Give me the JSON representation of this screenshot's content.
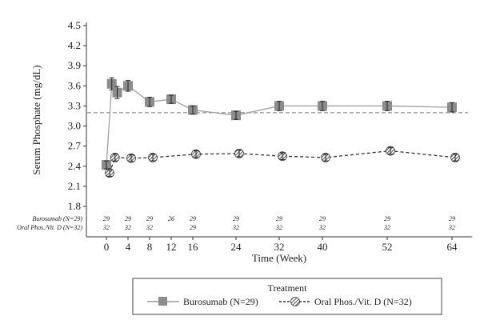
{
  "chart_data": {
    "type": "line",
    "title": "",
    "xlabel": "Time (Week)",
    "ylabel": "Serum Phosphate (mg/dL)",
    "xlim": [
      0,
      64
    ],
    "ylim": [
      1.8,
      4.5
    ],
    "xticks": [
      0,
      4,
      8,
      12,
      16,
      24,
      32,
      40,
      52,
      64
    ],
    "xtick_labels": [
      "0",
      "4",
      "8",
      "12",
      "16",
      "24",
      "32",
      "40",
      "52",
      "64"
    ],
    "yticks": [
      1.8,
      2.1,
      2.4,
      2.7,
      3.0,
      3.3,
      3.6,
      3.9,
      4.2,
      4.5
    ],
    "ytick_labels": [
      "1.8",
      "2.1",
      "2.4",
      "2.7",
      "3.0",
      "3.3",
      "3.6",
      "3.9",
      "4.2",
      "4.5"
    ],
    "reference_line": {
      "y": 3.2,
      "style": "dashed"
    },
    "grid": false,
    "series": [
      {
        "name": "Burosumab (N=29)",
        "marker": "square",
        "line_style": "solid",
        "color": "#8c8c8c",
        "x": [
          0,
          1,
          2,
          4,
          8,
          12,
          16,
          24,
          32,
          40,
          52,
          64
        ],
        "y": [
          2.42,
          3.63,
          3.5,
          3.6,
          3.36,
          3.4,
          3.24,
          3.16,
          3.3,
          3.3,
          3.3,
          3.28
        ],
        "err": [
          0.06,
          0.09,
          0.09,
          0.08,
          0.07,
          0.06,
          0.06,
          0.06,
          0.07,
          0.07,
          0.07,
          0.07
        ]
      },
      {
        "name": "Oral Phos./Vit. D (N=32)",
        "marker": "hatched-circle",
        "line_style": "dashed",
        "color": "#333333",
        "x": [
          0,
          1,
          4,
          8,
          16,
          24,
          32,
          40,
          52,
          64
        ],
        "y": [
          2.3,
          2.53,
          2.52,
          2.53,
          2.58,
          2.59,
          2.55,
          2.53,
          2.63,
          2.53
        ],
        "err": [
          0.05,
          0.05,
          0.05,
          0.05,
          0.05,
          0.05,
          0.05,
          0.05,
          0.05,
          0.05
        ]
      }
    ],
    "n_at_risk": {
      "rows": [
        {
          "label": "Burosumab (N=29)",
          "weeks": [
            0,
            4,
            8,
            12,
            16,
            24,
            32,
            40,
            52,
            64
          ],
          "values": [
            "29",
            "29",
            "29",
            "26",
            "29",
            "29",
            "29",
            "29",
            "29",
            "29"
          ]
        },
        {
          "label": "Oral Phos./Vit. D (N=32)",
          "weeks": [
            0,
            4,
            8,
            16,
            24,
            32,
            40,
            52,
            64
          ],
          "values": [
            "32",
            "32",
            "32",
            "29",
            "32",
            "32",
            "32",
            "32",
            "32"
          ]
        }
      ]
    },
    "legend": {
      "title": "Treatment",
      "position": "bottom-center",
      "entries": [
        "Burosumab (N=29)",
        "Oral Phos./Vit. D (N=32)"
      ]
    }
  }
}
